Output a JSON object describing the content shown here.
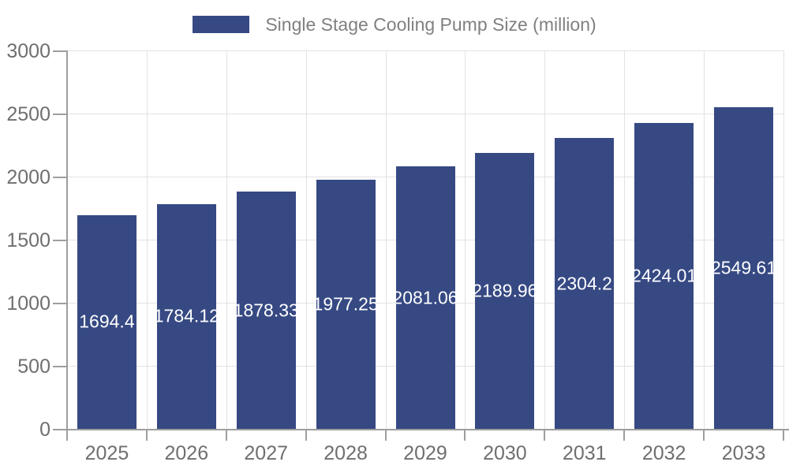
{
  "legend": {
    "label": "Single Stage Cooling Pump Size (million)"
  },
  "colors": {
    "bar": "#364983",
    "bar_label_text": "#ffffff",
    "legend_text": "#808080",
    "tick_label_text": "#6f6f6f",
    "axis_line": "#9e9e9e",
    "grid_line": "#e2e2e2",
    "background": "#ffffff"
  },
  "chart_data": {
    "type": "bar",
    "title": "",
    "categories": [
      "2025",
      "2026",
      "2027",
      "2028",
      "2029",
      "2030",
      "2031",
      "2032",
      "2033"
    ],
    "series": [
      {
        "name": "Single Stage Cooling Pump Size (million)",
        "values": [
          1694.4,
          1784.12,
          1878.33,
          1977.25,
          2081.06,
          2189.96,
          2304.2,
          2424.01,
          2549.61
        ]
      }
    ],
    "bar_labels": [
      "1694.4",
      "1784.12",
      "1878.33",
      "1977.25",
      "2081.06",
      "2189.96",
      "2304.2",
      "2424.01",
      "2549.61"
    ],
    "xlabel": "",
    "ylabel": "",
    "ylim": [
      0,
      3000
    ],
    "yticks": [
      0,
      500,
      1000,
      1500,
      2000,
      2500,
      3000
    ],
    "grid": true,
    "legend_position": "top"
  }
}
